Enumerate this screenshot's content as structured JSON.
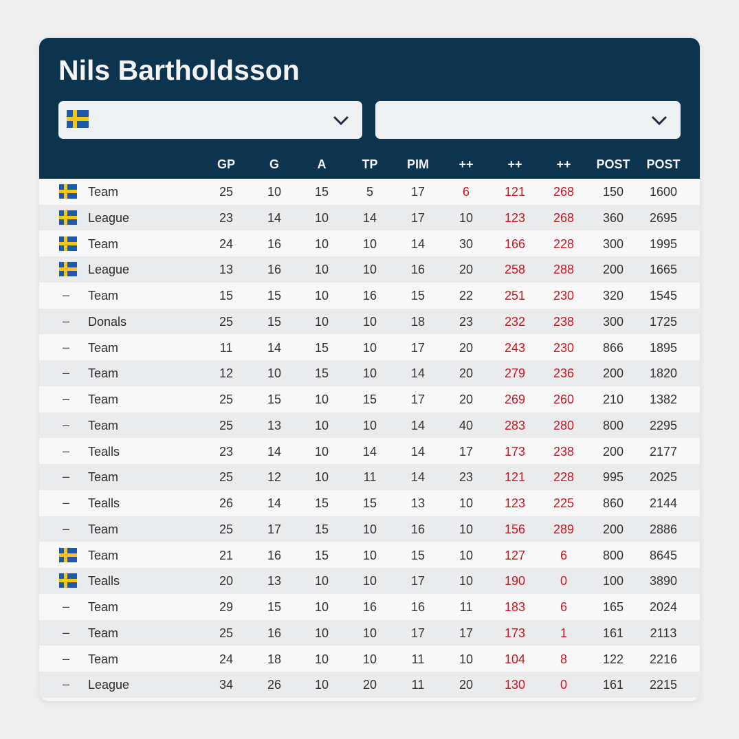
{
  "header": {
    "title": "Nils Bartholdsson"
  },
  "table": {
    "columns": [
      "GP",
      "G",
      "A",
      "TP",
      "PIM",
      "++",
      "++",
      "++",
      "POST",
      "POST"
    ],
    "highlight_columns": [
      6,
      7
    ],
    "highlight_color": "#c8171f",
    "rows": [
      {
        "flag": true,
        "team": "Team",
        "stats": [
          25,
          10,
          15,
          5,
          17,
          6,
          121,
          268,
          150,
          1600
        ],
        "highlight": [
          5
        ]
      },
      {
        "flag": true,
        "team": "League",
        "stats": [
          23,
          14,
          10,
          14,
          17,
          10,
          123,
          268,
          360,
          2695
        ]
      },
      {
        "flag": true,
        "team": "Team",
        "stats": [
          24,
          16,
          10,
          10,
          14,
          30,
          166,
          228,
          300,
          1995
        ]
      },
      {
        "flag": true,
        "team": "League",
        "stats": [
          13,
          16,
          10,
          10,
          16,
          20,
          258,
          288,
          200,
          1665
        ]
      },
      {
        "marker": "–",
        "team": "Team",
        "stats": [
          15,
          15,
          10,
          16,
          15,
          22,
          251,
          230,
          320,
          1545
        ]
      },
      {
        "marker": "–",
        "team": "Donals",
        "stats": [
          25,
          15,
          10,
          10,
          18,
          23,
          232,
          238,
          300,
          1725
        ]
      },
      {
        "marker": "–",
        "team": "Team",
        "stats": [
          11,
          14,
          15,
          10,
          17,
          20,
          243,
          230,
          866,
          1895
        ]
      },
      {
        "marker": "–",
        "team": "Team",
        "stats": [
          12,
          10,
          15,
          10,
          14,
          20,
          279,
          236,
          200,
          1820
        ]
      },
      {
        "marker": "–",
        "team": "Team",
        "stats": [
          25,
          15,
          10,
          15,
          17,
          20,
          269,
          260,
          210,
          1382
        ]
      },
      {
        "marker": "–",
        "team": "Team",
        "stats": [
          25,
          13,
          10,
          10,
          14,
          40,
          283,
          280,
          800,
          2295
        ]
      },
      {
        "marker": "–",
        "team": "Tealls",
        "stats": [
          23,
          14,
          10,
          14,
          14,
          17,
          173,
          238,
          200,
          2177
        ]
      },
      {
        "marker": "–",
        "team": "Team",
        "stats": [
          25,
          12,
          10,
          11,
          14,
          23,
          121,
          228,
          995,
          2025
        ]
      },
      {
        "marker": "–",
        "team": "Tealls",
        "stats": [
          26,
          14,
          15,
          15,
          13,
          10,
          123,
          225,
          860,
          2144
        ]
      },
      {
        "marker": "–",
        "team": "Team",
        "stats": [
          25,
          17,
          15,
          10,
          16,
          10,
          156,
          289,
          200,
          2886
        ]
      },
      {
        "flag": true,
        "team": "Team",
        "stats": [
          21,
          16,
          15,
          10,
          15,
          10,
          127,
          6,
          800,
          8645
        ]
      },
      {
        "flag": true,
        "team": "Tealls",
        "stats": [
          20,
          13,
          10,
          10,
          17,
          10,
          190,
          0,
          100,
          3890
        ]
      },
      {
        "marker": "–",
        "team": "Team",
        "stats": [
          29,
          15,
          10,
          16,
          16,
          11,
          183,
          6,
          165,
          2024
        ]
      },
      {
        "marker": "–",
        "team": "Team",
        "stats": [
          25,
          16,
          10,
          10,
          17,
          17,
          173,
          1,
          161,
          2113
        ]
      },
      {
        "marker": "–",
        "team": "Team",
        "stats": [
          24,
          18,
          10,
          10,
          11,
          10,
          104,
          8,
          122,
          2216
        ]
      },
      {
        "marker": "–",
        "team": "League",
        "stats": [
          34,
          26,
          10,
          20,
          11,
          20,
          130,
          0,
          161,
          2215
        ]
      }
    ]
  }
}
